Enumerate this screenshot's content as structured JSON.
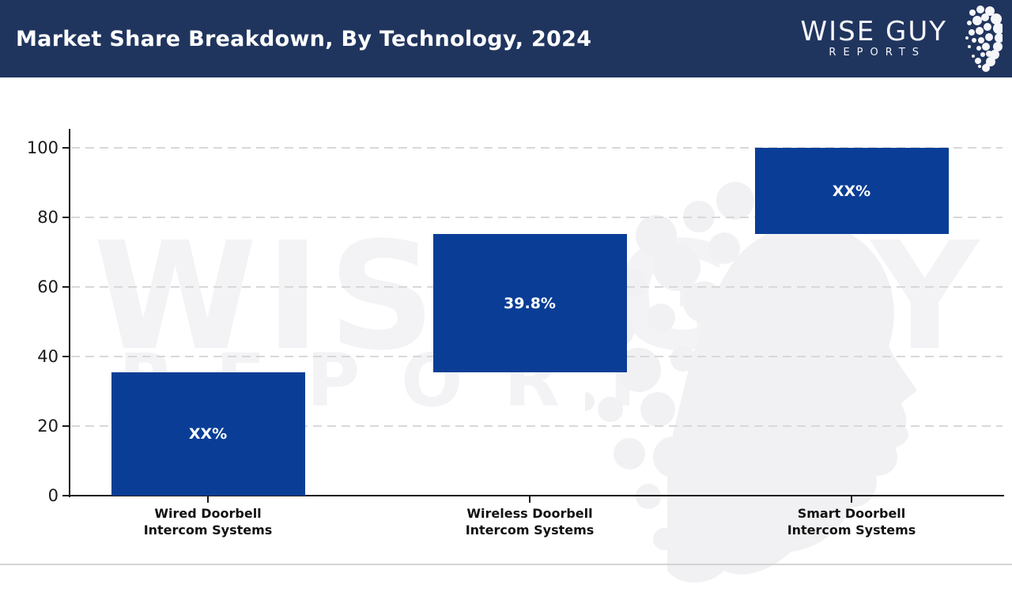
{
  "header": {
    "title": "Market Share Breakdown, By Technology, 2024",
    "logo": {
      "line1": "WISE GUY",
      "line2": "REPORTS"
    }
  },
  "watermark": {
    "line1": "WISE GUY",
    "line2": "REPORTS"
  },
  "colors": {
    "header_bg": "#20355e",
    "bar": "#0a3e96",
    "grid": "#d8d8d8",
    "axis": "#1a1a1a",
    "bar_label": "#ffffff",
    "watermark": "#f3f3f6"
  },
  "chart_data": {
    "type": "bar",
    "subtype": "floating-waterfall",
    "title": "Market Share Breakdown, By Technology, 2024",
    "xlabel": "",
    "ylabel": "",
    "ylim": [
      0,
      100
    ],
    "yticks": [
      0,
      20,
      40,
      60,
      80,
      100
    ],
    "grid": "horizontal-dashed",
    "legend": "none",
    "categories": [
      "Wired Doorbell Intercom Systems",
      "Wireless Doorbell Intercom Systems",
      "Smart Doorbell Intercom Systems"
    ],
    "bars": [
      {
        "label_lines": [
          "Wired Doorbell",
          "Intercom Systems"
        ],
        "base": 0,
        "value": 35.4,
        "top": 35.4,
        "value_label": "XX%"
      },
      {
        "label_lines": [
          "Wireless Doorbell",
          "Intercom Systems"
        ],
        "base": 35.4,
        "value": 39.8,
        "top": 75.2,
        "value_label": "39.8%"
      },
      {
        "label_lines": [
          "Smart Doorbell",
          "Intercom Systems"
        ],
        "base": 75.2,
        "value": 24.8,
        "top": 100.0,
        "value_label": "XX%"
      }
    ]
  }
}
